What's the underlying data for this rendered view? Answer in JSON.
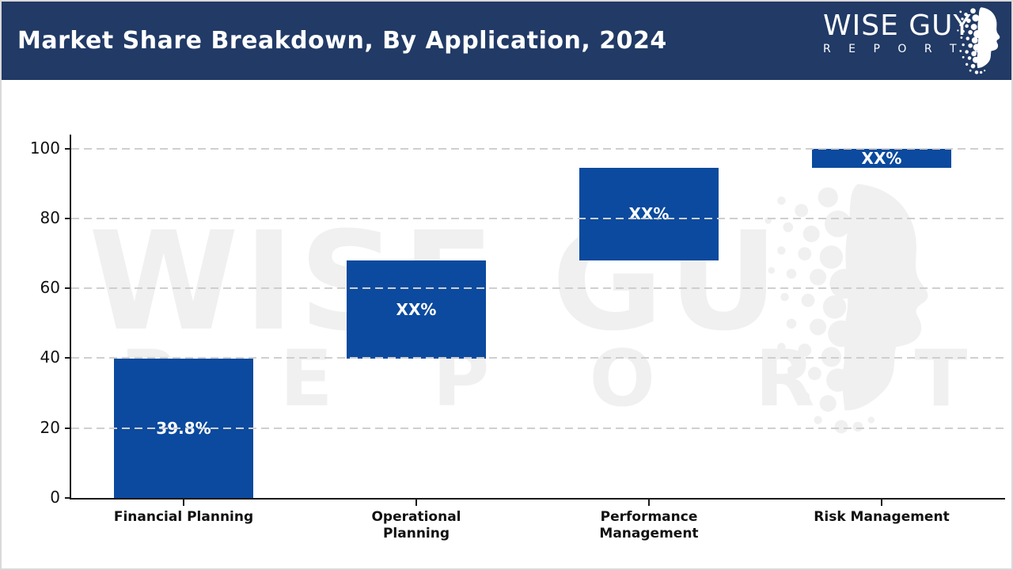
{
  "header": {
    "title": "Market Share Breakdown, By Application, 2024",
    "logo": {
      "line1": "WISE GUY",
      "line2": "R E P O R T S"
    }
  },
  "watermark": {
    "line1": "WISE GU",
    "line2": "R E P O R T S"
  },
  "colors": {
    "header_bg": "#213a66",
    "header_text": "#ffffff",
    "bar": "#0b4a9e",
    "bar_label": "#ffffff",
    "grid": "#cfcfcf",
    "axis": "#1a1a1a",
    "watermark": "#f0f0f1"
  },
  "chart_data": {
    "type": "bar",
    "subtype": "waterfall",
    "title": "Market Share Breakdown, By Application, 2024",
    "categories": [
      "Financial Planning",
      "Operational Planning",
      "Performance Management",
      "Risk Management"
    ],
    "category_label_lines": [
      [
        "Financial Planning"
      ],
      [
        "Operational",
        "Planning"
      ],
      [
        "Performance",
        "Management"
      ],
      [
        "Risk Management"
      ]
    ],
    "segments": [
      {
        "category": "Financial Planning",
        "start": 0,
        "end": 39.8,
        "label": "39.8%"
      },
      {
        "category": "Operational Planning",
        "start": 39.8,
        "end": 68,
        "label": "XX%"
      },
      {
        "category": "Performance Management",
        "start": 68,
        "end": 94.5,
        "label": "XX%"
      },
      {
        "category": "Risk Management",
        "start": 94.5,
        "end": 100,
        "label": "XX%"
      }
    ],
    "ylim": [
      0,
      104
    ],
    "yticks": [
      0,
      20,
      40,
      60,
      80,
      100
    ],
    "xlabel": "",
    "ylabel": "",
    "grid": "dashed-horizontal",
    "legend": "none"
  }
}
